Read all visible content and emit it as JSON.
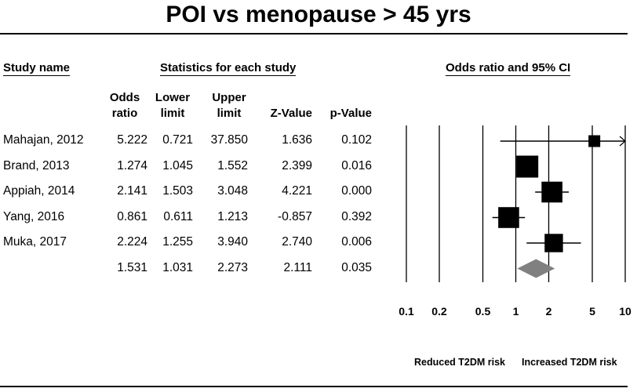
{
  "chart_data": {
    "type": "forest",
    "title": "POI vs menopause > 45 yrs",
    "headers": {
      "study_name": "Study name",
      "statistics": "Statistics for each study",
      "plot": "Odds ratio and 95% CI"
    },
    "columns": [
      {
        "key": "or",
        "line1": "Odds",
        "line2": "ratio"
      },
      {
        "key": "lower",
        "line1": "Lower",
        "line2": "limit"
      },
      {
        "key": "upper",
        "line1": "Upper",
        "line2": "limit"
      },
      {
        "key": "z",
        "line1": "",
        "line2": "Z-Value"
      },
      {
        "key": "p",
        "line1": "",
        "line2": "p-Value"
      }
    ],
    "studies": [
      {
        "name": "Mahajan, 2012",
        "or": "5.222",
        "lower": "0.721",
        "upper": "37.850",
        "z": "1.636",
        "p": "0.102",
        "weight": 0.35
      },
      {
        "name": "Brand, 2013",
        "or": "1.274",
        "lower": "1.045",
        "upper": "1.552",
        "z": "2.399",
        "p": "0.016",
        "weight": 1.0
      },
      {
        "name": "Appiah, 2014",
        "or": "2.141",
        "lower": "1.503",
        "upper": "3.048",
        "z": "4.221",
        "p": "0.000",
        "weight": 0.93
      },
      {
        "name": "Yang, 2016",
        "or": "0.861",
        "lower": "0.611",
        "upper": "1.213",
        "z": "-0.857",
        "p": "0.392",
        "weight": 0.93
      },
      {
        "name": "Muka, 2017",
        "or": "2.224",
        "lower": "1.255",
        "upper": "3.940",
        "z": "2.740",
        "p": "0.006",
        "weight": 0.77
      }
    ],
    "summary": {
      "name": "",
      "or": "1.531",
      "lower": "1.031",
      "upper": "2.273",
      "z": "2.111",
      "p": "0.035"
    },
    "x_axis": {
      "scale": "log",
      "range": [
        0.1,
        10
      ],
      "ticks": [
        0.1,
        0.2,
        0.5,
        1,
        2,
        5,
        10
      ],
      "tick_labels": [
        "0.1",
        "0.2",
        "0.5",
        "1",
        "2",
        "5",
        "10"
      ]
    },
    "footer": {
      "left": "Reduced T2DM risk",
      "right": "Increased T2DM risk"
    },
    "colors": {
      "marker": "#000000",
      "diamond": "#808080"
    }
  }
}
